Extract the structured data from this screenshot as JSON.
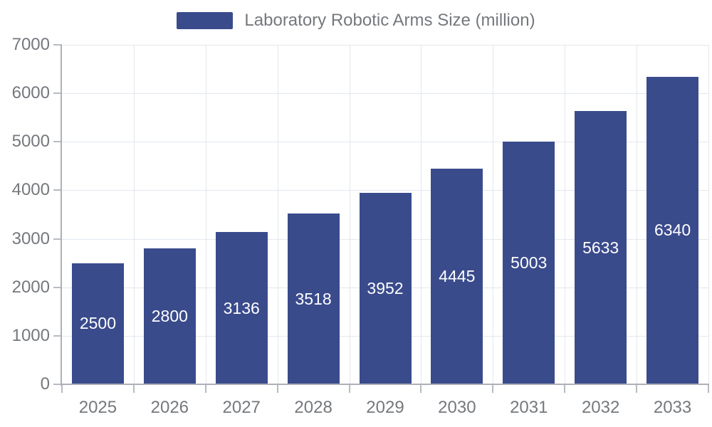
{
  "legend": {
    "label": "Laboratory Robotic Arms Size (million)"
  },
  "chart_data": {
    "type": "bar",
    "title": "Laboratory Robotic Arms Size (million)",
    "categories": [
      "2025",
      "2026",
      "2027",
      "2028",
      "2029",
      "2030",
      "2031",
      "2032",
      "2033"
    ],
    "values": [
      2500,
      2800,
      3136,
      3518,
      3952,
      4445,
      5003,
      5633,
      6340
    ],
    "xlabel": "",
    "ylabel": "",
    "ylim": [
      0,
      7000
    ],
    "ytick_step": 1000,
    "yticks": [
      "0",
      "1000",
      "2000",
      "3000",
      "4000",
      "5000",
      "6000",
      "7000"
    ],
    "grid": true,
    "legend_position": "top-center",
    "bar_color": "#3a4b8c",
    "value_label_color": "#ffffff",
    "axis_label_color": "#75787d",
    "grid_color": "#e3e7ee",
    "axis_line_color": "#adb0b6",
    "tick_color": "#b8bbc1"
  }
}
